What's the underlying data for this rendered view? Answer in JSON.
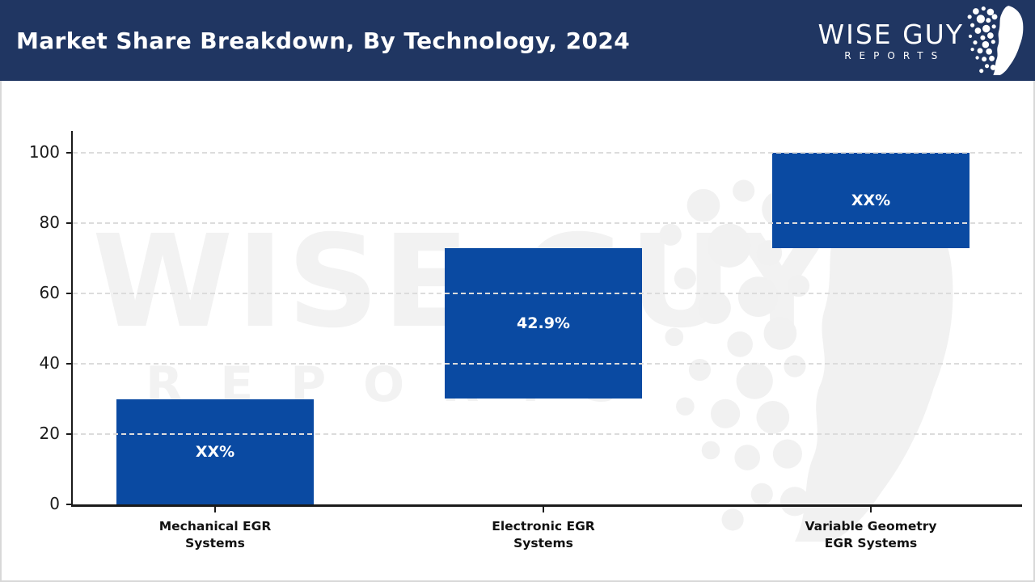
{
  "header": {
    "title": "Market Share Breakdown, By Technology, 2024",
    "logo_line1": "WISE GUY",
    "logo_line2": "REPORTS"
  },
  "watermark": {
    "line1": "WISE GUY",
    "line2": "REPORTS"
  },
  "chart_data": {
    "type": "bar",
    "variant": "waterfall",
    "title": "Market Share Breakdown, By Technology, 2024",
    "categories": [
      "Mechanical EGR\nSystems",
      "Electronic EGR\nSystems",
      "Variable Geometry\nEGR Systems"
    ],
    "bars": [
      {
        "category": "Mechanical EGR Systems",
        "start": 0,
        "end": 30,
        "label": "XX%"
      },
      {
        "category": "Electronic EGR Systems",
        "start": 30,
        "end": 72.9,
        "label": "42.9%"
      },
      {
        "category": "Variable Geometry EGR Systems",
        "start": 72.9,
        "end": 100,
        "label": "XX%"
      }
    ],
    "ylim": [
      0,
      100
    ],
    "yticks": [
      0,
      20,
      40,
      60,
      80,
      100
    ],
    "xlabel": "",
    "ylabel": "",
    "grid": "horizontal-dashed-over-bars",
    "legend": "none",
    "colors": {
      "bar": "#0A4AA2",
      "bar_label": "#FFFFFF",
      "axis": "#1A1A1A",
      "gridline": "#DCDCDC",
      "header_bg": "#203662",
      "watermark": "#F2F2F2"
    }
  }
}
